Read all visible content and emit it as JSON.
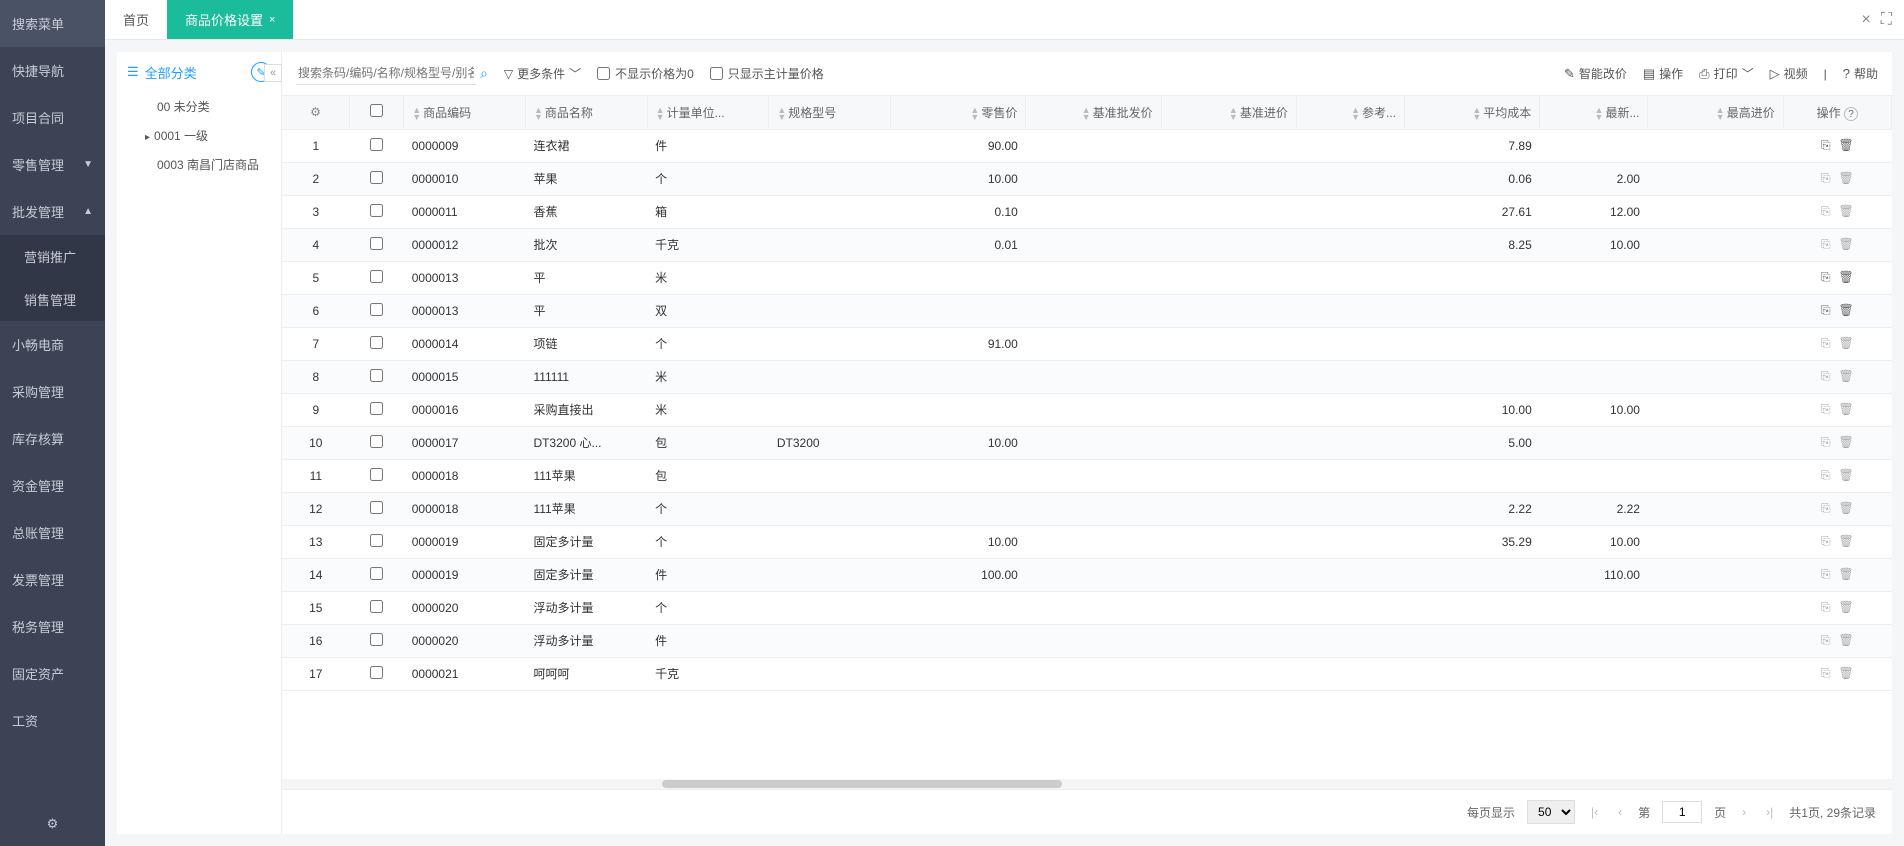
{
  "sidebar": {
    "items": [
      {
        "label": "搜索菜单",
        "arrow": ""
      },
      {
        "label": "快捷导航",
        "arrow": ""
      },
      {
        "label": "项目合同",
        "arrow": ""
      },
      {
        "label": "零售管理",
        "arrow": "▼"
      },
      {
        "label": "批发管理",
        "arrow": "▲",
        "expanded": true
      },
      {
        "label": "小畅电商",
        "arrow": ""
      },
      {
        "label": "采购管理",
        "arrow": ""
      },
      {
        "label": "库存核算",
        "arrow": ""
      },
      {
        "label": "资金管理",
        "arrow": ""
      },
      {
        "label": "总账管理",
        "arrow": ""
      },
      {
        "label": "发票管理",
        "arrow": ""
      },
      {
        "label": "税务管理",
        "arrow": ""
      },
      {
        "label": "固定资产",
        "arrow": ""
      },
      {
        "label": "工资",
        "arrow": ""
      }
    ],
    "sub_items": [
      "营销推广",
      "销售管理"
    ],
    "bottom_icon": "⚙"
  },
  "tabs": {
    "home": "首页",
    "active": "商品价格设置",
    "close_icon": "×",
    "expand_icon": "⛶"
  },
  "tree": {
    "header": "全部分类",
    "header_icon": "☰",
    "edit_icon": "✎",
    "collapse_icon": "«",
    "nodes": [
      {
        "label": "00 未分类",
        "children": false
      },
      {
        "label": "0001 一级",
        "children": true
      },
      {
        "label": "0003 南昌门店商品",
        "children": false
      }
    ]
  },
  "toolbar": {
    "search_placeholder": "搜索条码/编码/名称/规格型号/别名",
    "more_filter": "更多条件",
    "chk1": "不显示价格为0",
    "chk2": "只显示主计量价格",
    "smart_price": "智能改价",
    "operation": "操作",
    "print": "打印",
    "video": "视频",
    "help": "帮助"
  },
  "table": {
    "columns": [
      "商品编码",
      "商品名称",
      "计量单位...",
      "规格型号",
      "零售价",
      "基准批发价",
      "基准进价",
      "参考...",
      "平均成本",
      "最新...",
      "最高进价",
      "操作"
    ],
    "op_help_icon": "?",
    "rows": [
      {
        "idx": 1,
        "code": "0000009",
        "name": "连衣裙",
        "unit": "件",
        "spec": "",
        "retail": "90.00",
        "wholesale": "",
        "purchase": "",
        "ref": "",
        "avgcost": "7.89",
        "latest": "",
        "max": "",
        "op_enabled": true
      },
      {
        "idx": 2,
        "code": "0000010",
        "name": "苹果",
        "unit": "个",
        "spec": "",
        "retail": "10.00",
        "wholesale": "",
        "purchase": "",
        "ref": "",
        "avgcost": "0.06",
        "latest": "2.00",
        "max": "",
        "op_enabled": false
      },
      {
        "idx": 3,
        "code": "0000011",
        "name": "香蕉",
        "unit": "箱",
        "spec": "",
        "retail": "0.10",
        "wholesale": "",
        "purchase": "",
        "ref": "",
        "avgcost": "27.61",
        "latest": "12.00",
        "max": "",
        "op_enabled": false
      },
      {
        "idx": 4,
        "code": "0000012",
        "name": "批次",
        "unit": "千克",
        "spec": "",
        "retail": "0.01",
        "wholesale": "",
        "purchase": "",
        "ref": "",
        "avgcost": "8.25",
        "latest": "10.00",
        "max": "",
        "op_enabled": false
      },
      {
        "idx": 5,
        "code": "0000013",
        "name": "平",
        "unit": "米",
        "spec": "",
        "retail": "",
        "wholesale": "",
        "purchase": "",
        "ref": "",
        "avgcost": "",
        "latest": "",
        "max": "",
        "op_enabled": true
      },
      {
        "idx": 6,
        "code": "0000013",
        "name": "平",
        "unit": "双",
        "spec": "",
        "retail": "",
        "wholesale": "",
        "purchase": "",
        "ref": "",
        "avgcost": "",
        "latest": "",
        "max": "",
        "op_enabled": true
      },
      {
        "idx": 7,
        "code": "0000014",
        "name": "项链",
        "unit": "个",
        "spec": "",
        "retail": "91.00",
        "wholesale": "",
        "purchase": "",
        "ref": "",
        "avgcost": "",
        "latest": "",
        "max": "",
        "op_enabled": false
      },
      {
        "idx": 8,
        "code": "0000015",
        "name": "111111",
        "unit": "米",
        "spec": "",
        "retail": "",
        "wholesale": "",
        "purchase": "",
        "ref": "",
        "avgcost": "",
        "latest": "",
        "max": "",
        "op_enabled": false
      },
      {
        "idx": 9,
        "code": "0000016",
        "name": "采购直接出",
        "unit": "米",
        "spec": "",
        "retail": "",
        "wholesale": "",
        "purchase": "",
        "ref": "",
        "avgcost": "10.00",
        "latest": "10.00",
        "max": "",
        "op_enabled": false
      },
      {
        "idx": 10,
        "code": "0000017",
        "name": "DT3200 心...",
        "unit": "包",
        "spec": "DT3200",
        "retail": "10.00",
        "wholesale": "",
        "purchase": "",
        "ref": "",
        "avgcost": "5.00",
        "latest": "",
        "max": "",
        "op_enabled": false
      },
      {
        "idx": 11,
        "code": "0000018",
        "name": "111苹果",
        "unit": "包",
        "spec": "",
        "retail": "",
        "wholesale": "",
        "purchase": "",
        "ref": "",
        "avgcost": "",
        "latest": "",
        "max": "",
        "op_enabled": false
      },
      {
        "idx": 12,
        "code": "0000018",
        "name": "111苹果",
        "unit": "个",
        "spec": "",
        "retail": "",
        "wholesale": "",
        "purchase": "",
        "ref": "",
        "avgcost": "2.22",
        "latest": "2.22",
        "max": "",
        "op_enabled": false
      },
      {
        "idx": 13,
        "code": "0000019",
        "name": "固定多计量",
        "unit": "个",
        "spec": "",
        "retail": "10.00",
        "wholesale": "",
        "purchase": "",
        "ref": "",
        "avgcost": "35.29",
        "latest": "10.00",
        "max": "",
        "op_enabled": false
      },
      {
        "idx": 14,
        "code": "0000019",
        "name": "固定多计量",
        "unit": "件",
        "spec": "",
        "retail": "100.00",
        "wholesale": "",
        "purchase": "",
        "ref": "",
        "avgcost": "",
        "latest": "110.00",
        "max": "",
        "op_enabled": false
      },
      {
        "idx": 15,
        "code": "0000020",
        "name": "浮动多计量",
        "unit": "个",
        "spec": "",
        "retail": "",
        "wholesale": "",
        "purchase": "",
        "ref": "",
        "avgcost": "",
        "latest": "",
        "max": "",
        "op_enabled": false
      },
      {
        "idx": 16,
        "code": "0000020",
        "name": "浮动多计量",
        "unit": "件",
        "spec": "",
        "retail": "",
        "wholesale": "",
        "purchase": "",
        "ref": "",
        "avgcost": "",
        "latest": "",
        "max": "",
        "op_enabled": false
      },
      {
        "idx": 17,
        "code": "0000021",
        "name": "呵呵呵",
        "unit": "千克",
        "spec": "",
        "retail": "",
        "wholesale": "",
        "purchase": "",
        "ref": "",
        "avgcost": "",
        "latest": "",
        "max": "",
        "op_enabled": false
      }
    ]
  },
  "pager": {
    "per_page_label": "每页显示",
    "per_page_value": "50",
    "page_label_pre": "第",
    "page_value": "1",
    "page_label_post": "页",
    "total": "共1页, 29条记录"
  }
}
